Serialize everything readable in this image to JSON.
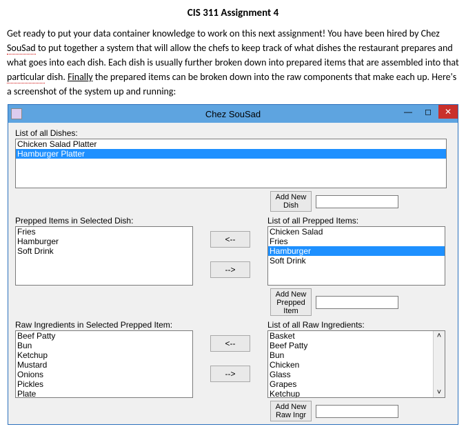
{
  "doc": {
    "title": "CIS 311 Assignment 4",
    "intro_pre": "Get ready to put your data container knowledge to work on this next assignment!  You have been hired by Chez ",
    "intro_w1": "SouSad",
    "intro_mid1": " to put together a system that will allow the chefs to keep track of what dishes the restaurant prepares and what goes into each dish.  Each dish is usually further broken down into prepared items that are assembled into that ",
    "intro_w2": "particular",
    "intro_mid2": " dish.  ",
    "intro_w3": "Finally",
    "intro_post": " the prepared items can be broken down into the raw components that make each up.  Here's a screenshot of the system up and running:"
  },
  "win": {
    "title": "Chez SouSad",
    "min": "—",
    "max": "◻",
    "close": "✕"
  },
  "labels": {
    "dishes": "List of all Dishes:",
    "preppedInDish": "Prepped Items in Selected Dish:",
    "allPrepped": "List of all Prepped Items:",
    "rawInPrepped": "Raw Ingredients in Selected Prepped Item:",
    "allRaw": "List of all Raw Ingredients:"
  },
  "buttons": {
    "addDish": "Add New\nDish",
    "addPrepped": "Add New\nPrepped\nItem",
    "addRaw": "Add New\nRaw Ingr",
    "arrowLeft": "<--",
    "arrowRight": "-->"
  },
  "dishes": {
    "items": [
      "Chicken Salad Platter",
      "Hamburger Platter"
    ],
    "selected": 1
  },
  "preppedInDish": {
    "items": [
      "Fries",
      "Hamburger",
      "Soft Drink"
    ],
    "selected": -1
  },
  "allPrepped": {
    "items": [
      "Chicken Salad",
      "Fries",
      "Hamburger",
      "Soft Drink"
    ],
    "selected": 2
  },
  "rawInPrepped": {
    "items": [
      "Beef Patty",
      "Bun",
      "Ketchup",
      "Mustard",
      "Onions",
      "Pickles",
      "Plate"
    ],
    "selected": -1
  },
  "allRaw": {
    "items": [
      "Basket",
      "Beef Patty",
      "Bun",
      "Chicken",
      "Glass",
      "Grapes",
      "Ketchup"
    ],
    "selected": -1
  }
}
